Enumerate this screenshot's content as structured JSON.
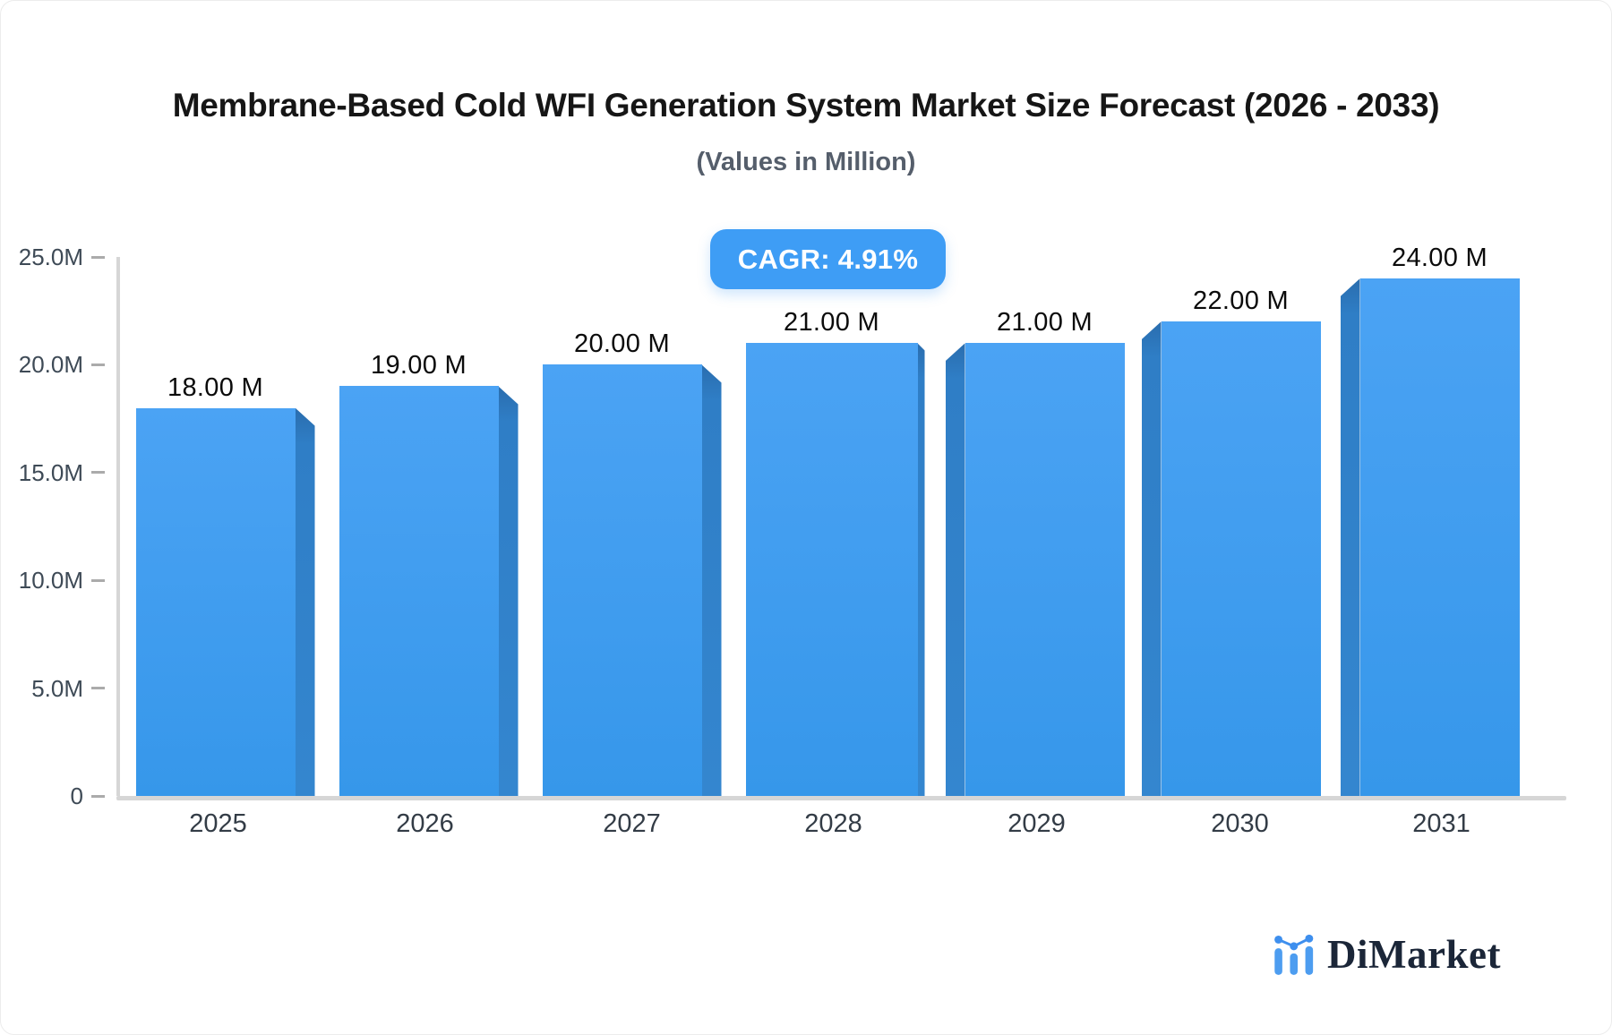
{
  "title": "Membrane-Based Cold WFI Generation System Market Size Forecast (2026 - 2033)",
  "subtitle": "(Values in Million)",
  "badge": {
    "label": "CAGR: 4.91%"
  },
  "brand": {
    "name": "DiMarket",
    "icon": "bar-chart-trend-icon"
  },
  "colors": {
    "title_color": "#161616",
    "subtitle_color": "#555E6B",
    "badge_bg": "#3E9DF5",
    "badge_text": "#FFFFFF",
    "bar_face_top": "#4BA3F4",
    "bar_face_bottom": "#3697EA",
    "bar_side_dark": "#2A6DAE",
    "bar_side": "#2F7EC6",
    "bar_side_light": "#3486CF",
    "axis_line": "#D6D6D6",
    "tick_mark": "#ABABAB",
    "axis_label": "#3E4A56",
    "year_label": "#333C46",
    "value_label": "#0B0B0B",
    "brand_blue": "#4D9DF0",
    "brand_dot_blue": "#3E8FEE",
    "brand_navy": "#1B2638"
  },
  "chart_data": {
    "type": "bar",
    "style": "3d-beveled-bars",
    "title": "Membrane-Based Cold WFI Generation System Market Size Forecast (2026 - 2033)",
    "subtitle": "(Values in Million)",
    "cagr": "4.91%",
    "unit": "Million",
    "categories": [
      "2025",
      "2026",
      "2027",
      "2028",
      "2029",
      "2030",
      "2031"
    ],
    "values": [
      18,
      19,
      20,
      21,
      21,
      22,
      24
    ],
    "bar_labels": [
      "18.00 M",
      "19.00 M",
      "20.00 M",
      "21.00 M",
      "21.00 M",
      "22.00 M",
      "24.00 M"
    ],
    "bar_color": "#3D9BF0",
    "ylim": [
      0,
      25
    ],
    "y_ticks": [
      {
        "value": 25,
        "label": "25.0M"
      },
      {
        "value": 20,
        "label": "20.0M"
      },
      {
        "value": 15,
        "label": "15.0M"
      },
      {
        "value": 10,
        "label": "10.0M"
      },
      {
        "value": 5,
        "label": "5.0M"
      },
      {
        "value": 0,
        "label": "0"
      }
    ],
    "grid": false,
    "legend": false
  }
}
